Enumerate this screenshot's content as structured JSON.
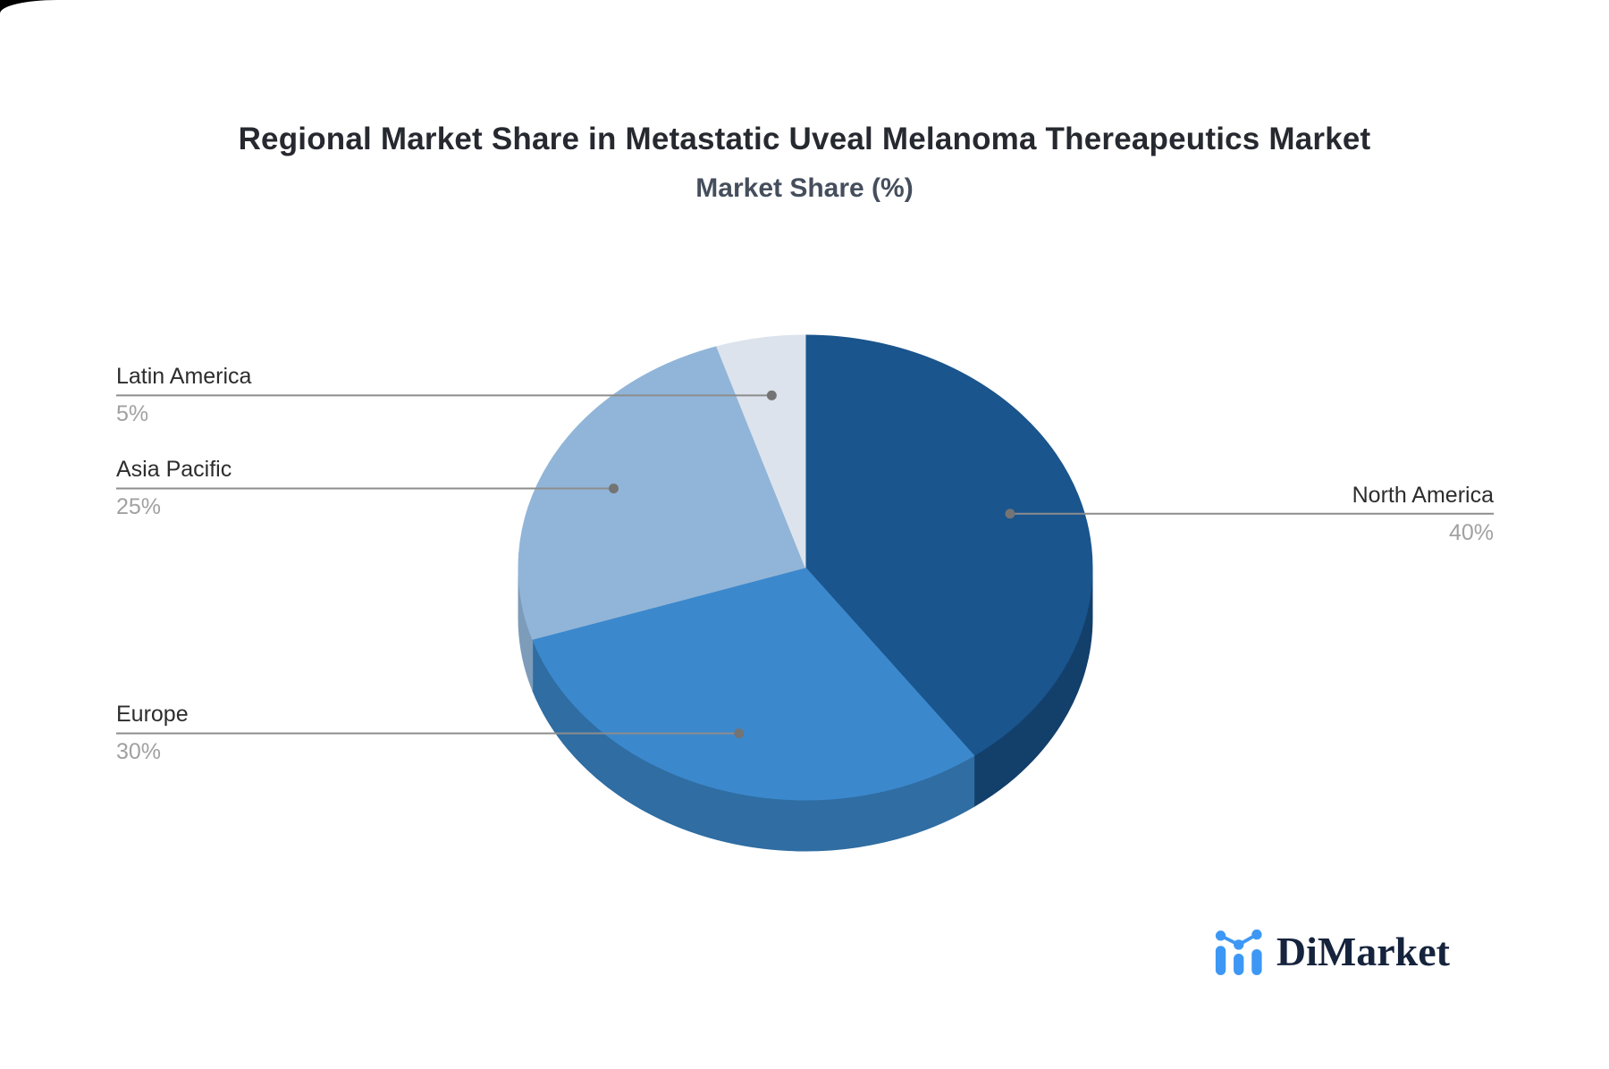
{
  "chart_data": {
    "type": "pie",
    "style": "3d",
    "title": "Regional Market Share in Metastatic Uveal Melanoma Thereapeutics Market",
    "subtitle": "Market Share (%)",
    "unit": "%",
    "start_angle": "12-o'clock",
    "direction": "clockwise",
    "legend_position": "callout-labels",
    "slices": [
      {
        "name": "North America",
        "value": 40,
        "label": "40%",
        "color": "#1A558D",
        "rim_color": "#133F6B"
      },
      {
        "name": "Europe",
        "value": 30,
        "label": "30%",
        "color": "#3C88CC",
        "rim_color": "#2F6DA2"
      },
      {
        "name": "Asia Pacific",
        "value": 25,
        "label": "25%",
        "color": "#91B5D8",
        "rim_color": "#7D9CBA"
      },
      {
        "name": "Latin America",
        "value": 5,
        "label": "5%",
        "color": "#DDE3EC",
        "rim_color": "#C2CBD8"
      }
    ]
  },
  "brand": {
    "name": "DiMarket"
  },
  "colors": {
    "background": "#FFFFFF",
    "title": "#26292F",
    "subtitle": "#454E5C",
    "label_name": "#2D2D2D",
    "label_value": "#A1A1A1",
    "leader_line": "#8D8D8D",
    "leader_dot": "#747474",
    "logo_icon": "#3D98F5",
    "logo_text": "#15233C"
  }
}
